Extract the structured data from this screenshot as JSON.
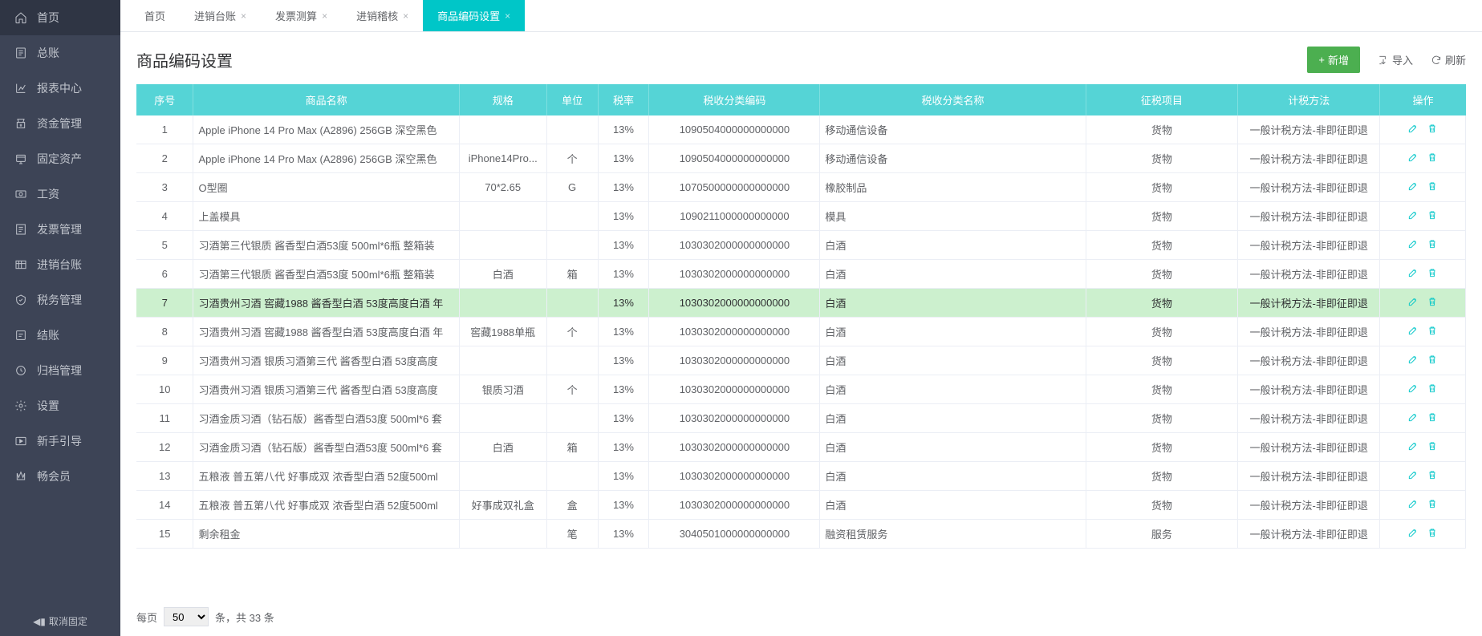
{
  "sidebar": {
    "items": [
      {
        "label": "首页",
        "icon": "home"
      },
      {
        "label": "总账",
        "icon": "ledger"
      },
      {
        "label": "报表中心",
        "icon": "chart"
      },
      {
        "label": "资金管理",
        "icon": "money"
      },
      {
        "label": "固定资产",
        "icon": "asset"
      },
      {
        "label": "工资",
        "icon": "salary"
      },
      {
        "label": "发票管理",
        "icon": "invoice"
      },
      {
        "label": "进销台账",
        "icon": "inout"
      },
      {
        "label": "税务管理",
        "icon": "tax"
      },
      {
        "label": "结账",
        "icon": "close"
      },
      {
        "label": "归档管理",
        "icon": "archive"
      },
      {
        "label": "设置",
        "icon": "gear"
      },
      {
        "label": "新手引导",
        "icon": "play"
      },
      {
        "label": "畅会员",
        "icon": "vip"
      }
    ],
    "footer": "取消固定"
  },
  "tabs": [
    {
      "label": "首页",
      "closable": false,
      "active": false
    },
    {
      "label": "进销台账",
      "closable": true,
      "active": false
    },
    {
      "label": "发票测算",
      "closable": true,
      "active": false
    },
    {
      "label": "进销稽核",
      "closable": true,
      "active": false
    },
    {
      "label": "商品编码设置",
      "closable": true,
      "active": true
    }
  ],
  "page": {
    "title": "商品编码设置"
  },
  "actions": {
    "add": "新增",
    "import": "导入",
    "refresh": "刷新"
  },
  "table": {
    "columns": [
      "序号",
      "商品名称",
      "规格",
      "单位",
      "税率",
      "税收分类编码",
      "税收分类名称",
      "征税项目",
      "计税方法",
      "操作"
    ],
    "rows": [
      {
        "seq": "1",
        "name": "Apple iPhone 14 Pro Max (A2896) 256GB 深空黑色",
        "spec": "",
        "unit": "",
        "rate": "13%",
        "code": "1090504000000000000",
        "cat": "移动通信设备",
        "proj": "货物",
        "method": "一般计税方法-非即征即退"
      },
      {
        "seq": "2",
        "name": "Apple iPhone 14 Pro Max (A2896) 256GB 深空黑色",
        "spec": "iPhone14Pro...",
        "unit": "个",
        "rate": "13%",
        "code": "1090504000000000000",
        "cat": "移动通信设备",
        "proj": "货物",
        "method": "一般计税方法-非即征即退"
      },
      {
        "seq": "3",
        "name": "O型圈",
        "spec": "70*2.65",
        "unit": "G",
        "rate": "13%",
        "code": "1070500000000000000",
        "cat": "橡胶制品",
        "proj": "货物",
        "method": "一般计税方法-非即征即退"
      },
      {
        "seq": "4",
        "name": "上盖模具",
        "spec": "",
        "unit": "",
        "rate": "13%",
        "code": "1090211000000000000",
        "cat": "模具",
        "proj": "货物",
        "method": "一般计税方法-非即征即退"
      },
      {
        "seq": "5",
        "name": "习酒第三代银质 酱香型白酒53度 500ml*6瓶 整箱装",
        "spec": "",
        "unit": "",
        "rate": "13%",
        "code": "1030302000000000000",
        "cat": "白酒",
        "proj": "货物",
        "method": "一般计税方法-非即征即退"
      },
      {
        "seq": "6",
        "name": "习酒第三代银质 酱香型白酒53度 500ml*6瓶 整箱装",
        "spec": "白酒",
        "unit": "箱",
        "rate": "13%",
        "code": "1030302000000000000",
        "cat": "白酒",
        "proj": "货物",
        "method": "一般计税方法-非即征即退"
      },
      {
        "seq": "7",
        "name": "习酒贵州习酒 窖藏1988 酱香型白酒 53度高度白酒 年",
        "spec": "",
        "unit": "",
        "rate": "13%",
        "code": "1030302000000000000",
        "cat": "白酒",
        "proj": "货物",
        "method": "一般计税方法-非即征即退",
        "highlight": true
      },
      {
        "seq": "8",
        "name": "习酒贵州习酒 窖藏1988 酱香型白酒 53度高度白酒 年",
        "spec": "窖藏1988单瓶",
        "unit": "个",
        "rate": "13%",
        "code": "1030302000000000000",
        "cat": "白酒",
        "proj": "货物",
        "method": "一般计税方法-非即征即退"
      },
      {
        "seq": "9",
        "name": "习酒贵州习酒 银质习酒第三代 酱香型白酒 53度高度",
        "spec": "",
        "unit": "",
        "rate": "13%",
        "code": "1030302000000000000",
        "cat": "白酒",
        "proj": "货物",
        "method": "一般计税方法-非即征即退"
      },
      {
        "seq": "10",
        "name": "习酒贵州习酒 银质习酒第三代 酱香型白酒 53度高度",
        "spec": "银质习酒",
        "unit": "个",
        "rate": "13%",
        "code": "1030302000000000000",
        "cat": "白酒",
        "proj": "货物",
        "method": "一般计税方法-非即征即退"
      },
      {
        "seq": "11",
        "name": "习酒金质习酒（钻石版）酱香型白酒53度 500ml*6 套",
        "spec": "",
        "unit": "",
        "rate": "13%",
        "code": "1030302000000000000",
        "cat": "白酒",
        "proj": "货物",
        "method": "一般计税方法-非即征即退"
      },
      {
        "seq": "12",
        "name": "习酒金质习酒（钻石版）酱香型白酒53度 500ml*6 套",
        "spec": "白酒",
        "unit": "箱",
        "rate": "13%",
        "code": "1030302000000000000",
        "cat": "白酒",
        "proj": "货物",
        "method": "一般计税方法-非即征即退"
      },
      {
        "seq": "13",
        "name": "五粮液 普五第八代 好事成双 浓香型白酒 52度500ml",
        "spec": "",
        "unit": "",
        "rate": "13%",
        "code": "1030302000000000000",
        "cat": "白酒",
        "proj": "货物",
        "method": "一般计税方法-非即征即退"
      },
      {
        "seq": "14",
        "name": "五粮液 普五第八代 好事成双 浓香型白酒 52度500ml",
        "spec": "好事成双礼盒",
        "unit": "盒",
        "rate": "13%",
        "code": "1030302000000000000",
        "cat": "白酒",
        "proj": "货物",
        "method": "一般计税方法-非即征即退"
      },
      {
        "seq": "15",
        "name": "剩余租金",
        "spec": "",
        "unit": "笔",
        "rate": "13%",
        "code": "3040501000000000000",
        "cat": "融资租赁服务",
        "proj": "服务",
        "method": "一般计税方法-非即征即退"
      }
    ]
  },
  "pagination": {
    "prefix": "每页",
    "pageSize": "50",
    "suffix": "条，共 33 条"
  },
  "colors": {
    "sidebar_bg": "#3d4456",
    "accent": "#00c6c8",
    "table_header": "#55d4d6",
    "primary_btn": "#4caf50",
    "row_highlight": "#ccf0ce"
  }
}
